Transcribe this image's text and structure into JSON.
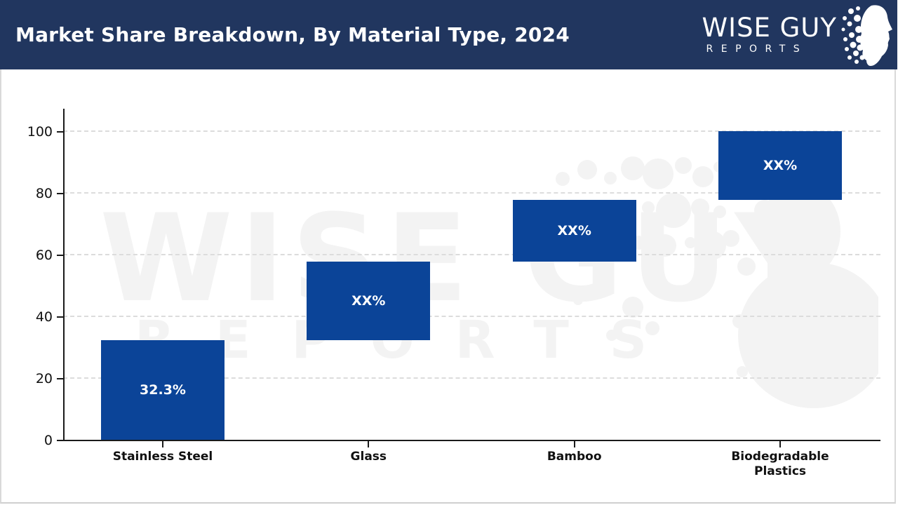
{
  "header": {
    "title": "Market Share Breakdown, By Material Type, 2024",
    "background_color": "#21365F",
    "logo": {
      "wordmark": "WISE GUY",
      "subtitle": "REPORTS",
      "face_icon": "dotted-head-profile"
    }
  },
  "watermark": {
    "wordmark": "WISE GUY",
    "subtitle": "REPORTS"
  },
  "chart_data": {
    "type": "bar",
    "variant": "waterfall",
    "title": "Market Share Breakdown, By Material Type, 2024",
    "categories": [
      "Stainless Steel",
      "Glass",
      "Bamboo",
      "Biodegradable Plastics"
    ],
    "series": [
      {
        "name": "Market share (%)",
        "starts": [
          0,
          32.3,
          57.7,
          77.7
        ],
        "ends": [
          32.3,
          57.7,
          77.7,
          100
        ],
        "values": [
          32.3,
          25.4,
          20.0,
          22.3
        ],
        "labels": [
          "32.3%",
          "XX%",
          "XX%",
          "XX%"
        ]
      }
    ],
    "xlabel": "",
    "ylabel": "",
    "ylim": [
      0,
      100
    ],
    "yticks": [
      0,
      20,
      40,
      60,
      80,
      100
    ],
    "grid": "horizontal-dashed",
    "legend": "none",
    "bar_color": "#0B4498",
    "bar_label_color": "#FFFFFF",
    "axis_color": "#1A1A1A",
    "gridline_color": "#DCDCDC"
  }
}
